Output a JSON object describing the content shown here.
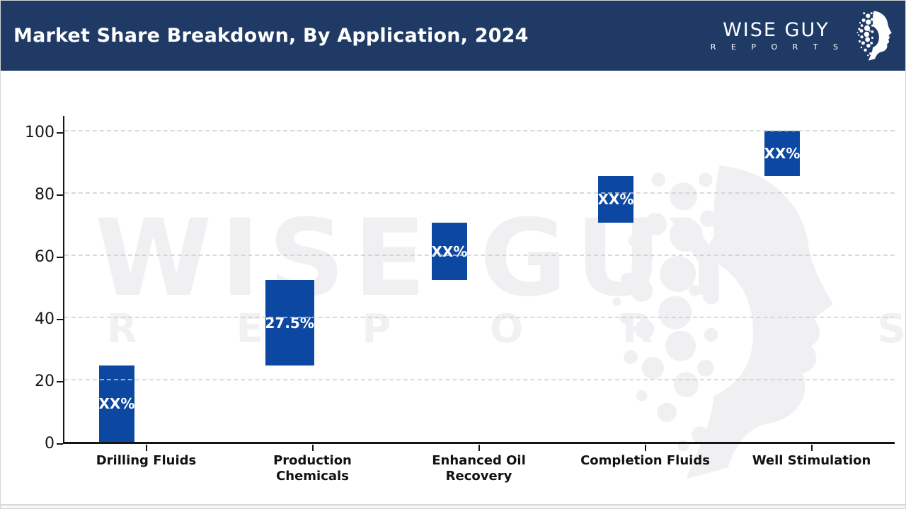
{
  "header": {
    "title": "Market Share Breakdown, By Application, 2024",
    "bg_color": "#203A66",
    "logo": {
      "name": "WISE GUY",
      "sub": "R E P O R T S"
    }
  },
  "watermark": {
    "line1": "WISE GUY",
    "line2": "R E P O R T S"
  },
  "chart_data": {
    "type": "bar",
    "variant": "waterfall",
    "title": "Market Share Breakdown, By Application, 2024",
    "xlabel": "",
    "ylabel": "",
    "categories": [
      "Drilling Fluids",
      "Production\nChemicals",
      "Enhanced Oil\nRecovery",
      "Completion Fluids",
      "Well Stimulation"
    ],
    "segments": [
      {
        "start": 0,
        "end": 24.5,
        "label": "XX%"
      },
      {
        "start": 24.5,
        "end": 52,
        "label": "27.5%"
      },
      {
        "start": 52,
        "end": 70.5,
        "label": "XX%"
      },
      {
        "start": 70.5,
        "end": 85.5,
        "label": "XX%"
      },
      {
        "start": 85.5,
        "end": 100,
        "label": "XX%"
      }
    ],
    "y_ticks": [
      0,
      20,
      40,
      60,
      80,
      100
    ],
    "ylim": [
      0,
      105.5
    ],
    "bar_color": "#0C48A2",
    "grid": "horizontal-dashed",
    "legend": "none"
  }
}
